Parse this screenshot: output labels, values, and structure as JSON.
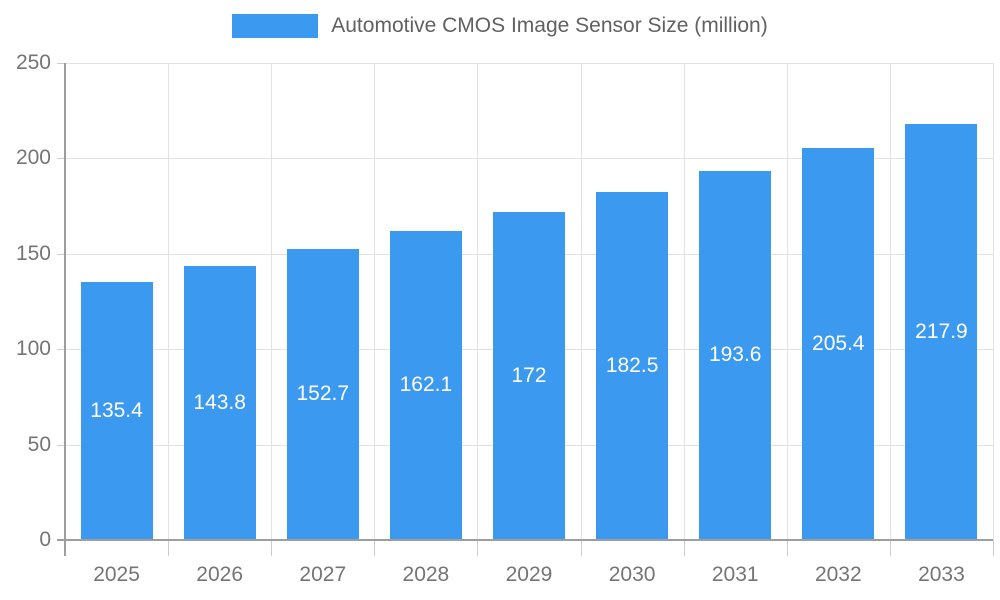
{
  "chart_data": {
    "type": "bar",
    "title": "Automotive CMOS Image Sensor Size (million)",
    "categories": [
      "2025",
      "2026",
      "2027",
      "2028",
      "2029",
      "2030",
      "2031",
      "2032",
      "2033"
    ],
    "values": [
      135.4,
      143.8,
      152.7,
      162.1,
      172,
      182.5,
      193.6,
      205.4,
      217.9
    ],
    "value_labels": [
      "135.4",
      "143.8",
      "152.7",
      "162.1",
      "172",
      "182.5",
      "193.6",
      "205.4",
      "217.9"
    ],
    "xlabel": "",
    "ylabel": "",
    "ylim": [
      0,
      250
    ],
    "yticks": [
      0,
      50,
      100,
      150,
      200,
      250
    ],
    "grid": true,
    "legend_position": "top",
    "bar_color": "#3b99ef",
    "value_label_color": "#ffffff",
    "axis_text_color": "#757575",
    "grid_color": "#e2e2e2",
    "axis_line_color": "#9e9e9e"
  }
}
